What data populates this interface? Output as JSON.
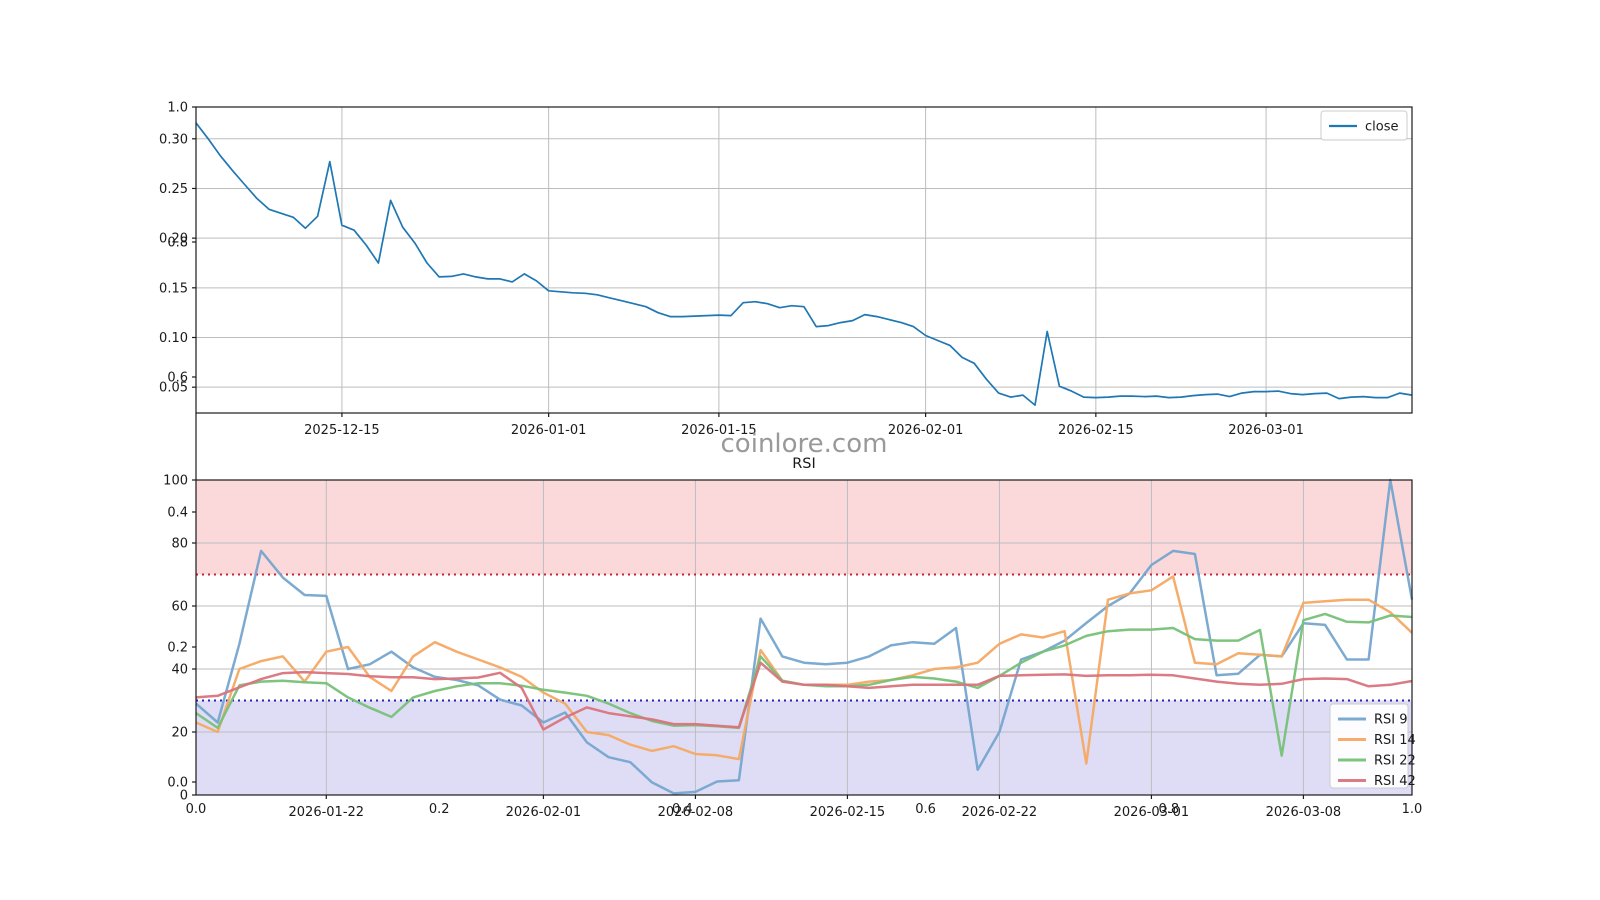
{
  "page": {
    "watermark": "coinlore.com",
    "watermark_color": "#999999"
  },
  "ghost_axis": {
    "x_tick_labels": [
      "0.0",
      "0.2",
      "0.4",
      "0.6",
      "0.8",
      "1.0"
    ],
    "y_tick_labels": [
      "1.0",
      "0.8",
      "0.6",
      "0.4",
      "0.2",
      "0.0"
    ]
  },
  "chart_data": [
    {
      "type": "line",
      "name": "price",
      "title": "",
      "legend_position": "upper right",
      "grid": true,
      "start_date": "2025-12-03",
      "end_date": "2026-03-13",
      "x_tick_labels": [
        "2025-12-15",
        "2026-01-01",
        "2026-01-15",
        "2026-02-01",
        "2026-02-15",
        "2026-03-01"
      ],
      "x_tick_index": [
        12,
        29,
        43,
        60,
        74,
        88
      ],
      "y_tick_values": [
        0.05,
        0.1,
        0.15,
        0.2,
        0.25,
        0.3
      ],
      "y_tick_labels": [
        "0.05",
        "0.10",
        "0.15",
        "0.20",
        "0.25",
        "0.30"
      ],
      "ylim": [
        0.024,
        0.332
      ],
      "series": [
        {
          "name": "close",
          "color": "#1f77b4",
          "width": 1.7,
          "opacity": 1,
          "values": [
            0.316,
            0.3,
            0.283,
            0.268,
            0.254,
            0.24,
            0.229,
            0.225,
            0.221,
            0.21,
            0.222,
            0.277,
            0.213,
            0.208,
            0.193,
            0.175,
            0.238,
            0.211,
            0.195,
            0.175,
            0.161,
            0.1615,
            0.164,
            0.161,
            0.159,
            0.159,
            0.156,
            0.164,
            0.157,
            0.147,
            0.146,
            0.145,
            0.1445,
            0.143,
            0.14,
            0.137,
            0.134,
            0.131,
            0.125,
            0.121,
            0.121,
            0.1215,
            0.122,
            0.1225,
            0.122,
            0.135,
            0.136,
            0.134,
            0.13,
            0.132,
            0.131,
            0.111,
            0.112,
            0.115,
            0.117,
            0.123,
            0.121,
            0.118,
            0.115,
            0.111,
            0.102,
            0.097,
            0.092,
            0.08,
            0.074,
            0.058,
            0.044,
            0.04,
            0.042,
            0.032,
            0.106,
            0.051,
            0.046,
            0.04,
            0.0395,
            0.04,
            0.041,
            0.041,
            0.0405,
            0.041,
            0.0395,
            0.04,
            0.0415,
            0.0425,
            0.043,
            0.0405,
            0.044,
            0.0455,
            0.0455,
            0.046,
            0.0435,
            0.0425,
            0.0435,
            0.044,
            0.0385,
            0.04,
            0.0405,
            0.0395,
            0.0395,
            0.044,
            0.042
          ]
        }
      ]
    },
    {
      "type": "line",
      "name": "rsi",
      "title": "RSI",
      "legend_position": "lower right",
      "grid": true,
      "start_date": "2026-01-16",
      "end_date": "2026-03-13",
      "x_tick_labels": [
        "2026-01-22",
        "2026-02-01",
        "2026-02-08",
        "2026-02-15",
        "2026-02-22",
        "2026-03-01",
        "2026-03-08"
      ],
      "x_tick_index": [
        6,
        16,
        23,
        30,
        37,
        44,
        51
      ],
      "y_tick_values": [
        0,
        20,
        40,
        60,
        80,
        100
      ],
      "y_tick_labels": [
        "0",
        "20",
        "40",
        "60",
        "80",
        "100"
      ],
      "ylim": [
        0,
        100
      ],
      "overbought_level": 70,
      "oversold_level": 30,
      "overbought_line_color": "#cc2233",
      "oversold_line_color": "#2222bb",
      "bands": [
        {
          "name": "overbought-band",
          "from": 70,
          "to": 100,
          "color": "#fbd9db"
        },
        {
          "name": "oversold-band",
          "from": 0,
          "to": 30,
          "color": "#dfddf6"
        }
      ],
      "series": [
        {
          "name": "RSI 9",
          "color": "#76a5cd",
          "width": 2.5,
          "opacity": 0.95,
          "values": [
            29,
            23,
            48,
            77.5,
            69,
            63.5,
            63.2,
            40,
            41.5,
            45.5,
            40.5,
            37.5,
            36.5,
            34.8,
            30.3,
            28.4,
            23,
            26.2,
            16.7,
            12,
            10.4,
            4,
            0.5,
            1,
            4.3,
            4.7,
            56,
            44,
            42,
            41.5,
            42,
            44,
            47.5,
            48.5,
            48,
            53,
            8,
            20,
            43,
            45.5,
            49,
            54.6,
            60,
            64,
            73,
            77.5,
            76.5,
            38,
            38.5,
            44.5,
            44,
            54.5,
            54,
            43,
            43,
            100,
            62
          ]
        },
        {
          "name": "RSI 14",
          "color": "#f5a963",
          "width": 2.5,
          "opacity": 0.95,
          "values": [
            23,
            20,
            40,
            42.5,
            44,
            36,
            45.5,
            47,
            37.5,
            33,
            44,
            48.5,
            45.5,
            43,
            40.5,
            37.5,
            32.5,
            29,
            20,
            19,
            16,
            14,
            15.5,
            13,
            12.6,
            11.4,
            46,
            36.3,
            35,
            35,
            35,
            36,
            36.5,
            38,
            40,
            40.5,
            42,
            48,
            51,
            50,
            52,
            10,
            62,
            64,
            65,
            69.4,
            42,
            41.5,
            45,
            44.5,
            44,
            61,
            61.5,
            62,
            62,
            58,
            51.5
          ]
        },
        {
          "name": "RSI 22",
          "color": "#77c178",
          "width": 2.5,
          "opacity": 0.95,
          "values": [
            26,
            21.3,
            34.8,
            36,
            36.3,
            35.8,
            35.5,
            31,
            27.7,
            24.8,
            31,
            33,
            34.5,
            35.5,
            35.5,
            34.7,
            33.4,
            32.5,
            31.5,
            29,
            26,
            23.5,
            22,
            22.2,
            21.8,
            21.3,
            44,
            36.3,
            35,
            34.5,
            34.5,
            35,
            36.5,
            37.5,
            37,
            36,
            34,
            37.8,
            42,
            45.5,
            47.5,
            50.5,
            52,
            52.5,
            52.5,
            53,
            49.5,
            49,
            49,
            52.4,
            12.5,
            55.5,
            57.5,
            55,
            54.8,
            57,
            56.5
          ]
        },
        {
          "name": "RSI 42",
          "color": "#d9747c",
          "width": 2.5,
          "opacity": 0.95,
          "values": [
            31,
            31.5,
            34.2,
            36.8,
            38.7,
            39,
            38.7,
            38.4,
            37.7,
            37.4,
            37.4,
            36.8,
            37,
            37.3,
            38.8,
            34,
            20.8,
            24.6,
            27.8,
            26,
            25,
            24,
            22.5,
            22.5,
            22,
            21.5,
            42,
            36,
            35,
            35,
            34.5,
            34,
            34.5,
            35,
            35,
            35,
            35,
            37.8,
            38,
            38.2,
            38.3,
            37.8,
            38,
            38,
            38.2,
            38,
            37,
            36,
            35.3,
            35,
            35.3,
            36.8,
            37,
            36.8,
            34.5,
            35,
            36.2
          ]
        }
      ]
    }
  ]
}
